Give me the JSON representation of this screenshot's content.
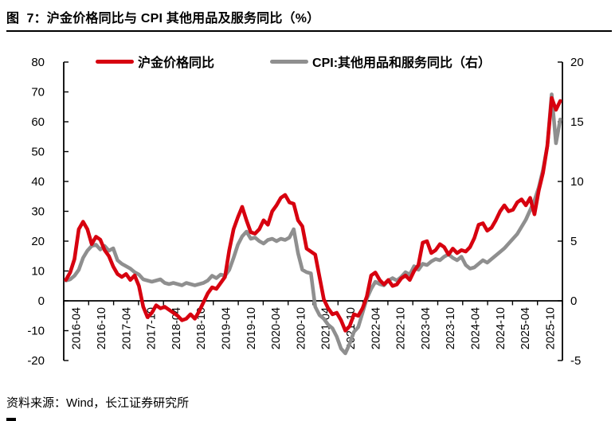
{
  "page": {
    "title": "图  7：沪金价格同比与 CPI 其他用品及服务同比（%）",
    "source": "资料来源：Wind，长江证券研究所"
  },
  "chart_data": {
    "type": "line",
    "title": "沪金价格同比与 CPI 其他用品及服务同比（%）",
    "legend_position": "top",
    "grid": false,
    "x": [
      "2016-04",
      "2016-05",
      "2016-06",
      "2016-07",
      "2016-08",
      "2016-09",
      "2016-10",
      "2016-11",
      "2016-12",
      "2017-01",
      "2017-02",
      "2017-03",
      "2017-04",
      "2017-05",
      "2017-06",
      "2017-07",
      "2017-08",
      "2017-09",
      "2017-10",
      "2017-11",
      "2017-12",
      "2018-01",
      "2018-02",
      "2018-03",
      "2018-04",
      "2018-05",
      "2018-06",
      "2018-07",
      "2018-08",
      "2018-09",
      "2018-10",
      "2018-11",
      "2018-12",
      "2019-01",
      "2019-02",
      "2019-03",
      "2019-04",
      "2019-05",
      "2019-06",
      "2019-07",
      "2019-08",
      "2019-09",
      "2019-10",
      "2019-11",
      "2019-12",
      "2020-01",
      "2020-02",
      "2020-03",
      "2020-04",
      "2020-05",
      "2020-06",
      "2020-07",
      "2020-08",
      "2020-09",
      "2020-10",
      "2020-11",
      "2020-12",
      "2021-01",
      "2021-02",
      "2021-03",
      "2021-04",
      "2021-05",
      "2021-06",
      "2021-07",
      "2021-08",
      "2021-09",
      "2021-10",
      "2021-11",
      "2021-12",
      "2022-01",
      "2022-02",
      "2022-03",
      "2022-04",
      "2022-05",
      "2022-06",
      "2022-07",
      "2022-08",
      "2022-09",
      "2022-10",
      "2022-11",
      "2022-12",
      "2023-01",
      "2023-02",
      "2023-03",
      "2023-04",
      "2023-05",
      "2023-06",
      "2023-07",
      "2023-08",
      "2023-09",
      "2023-10",
      "2023-11",
      "2023-12",
      "2024-01",
      "2024-02",
      "2024-03",
      "2024-04",
      "2024-05",
      "2024-06",
      "2024-07",
      "2024-08",
      "2024-09",
      "2024-10",
      "2024-11",
      "2024-12",
      "2025-01",
      "2025-02",
      "2025-03",
      "2025-04",
      "2025-05",
      "2025-06",
      "2025-07",
      "2025-08",
      "2025-09",
      "2025-10",
      "2025-11"
    ],
    "x_tick_labels": [
      "2016-04",
      "2016-10",
      "2017-04",
      "2017-10",
      "2018-04",
      "2018-10",
      "2019-04",
      "2019-10",
      "2020-04",
      "2020-10",
      "2021-04",
      "2021-10",
      "2022-04",
      "2022-10",
      "2023-04",
      "2023-10",
      "2024-04",
      "2024-10",
      "2025-04",
      "2025-10"
    ],
    "left_axis": {
      "min": -20,
      "max": 80,
      "ticks": [
        80,
        70,
        60,
        50,
        40,
        30,
        20,
        10,
        0,
        -10,
        -20
      ]
    },
    "right_axis": {
      "min": -5,
      "max": 20,
      "ticks": [
        20,
        15,
        10,
        5,
        0,
        -5
      ]
    },
    "series": [
      {
        "name": "沪金价格同比",
        "axis": "left",
        "color": "#d7000f",
        "values": [
          7,
          9.5,
          14,
          24,
          26.5,
          24,
          19,
          21.5,
          20.5,
          17,
          15,
          11.5,
          9,
          8,
          9,
          7,
          8.5,
          5,
          -2,
          -5.5,
          -4,
          -1.5,
          -2.5,
          -2,
          -3,
          -4,
          -5,
          -6.5,
          -6,
          -4.5,
          -6,
          -3.5,
          -0.5,
          2.5,
          4.5,
          4,
          6,
          8,
          17,
          24,
          28,
          31.5,
          27,
          23,
          22.5,
          24,
          27,
          25.5,
          30,
          32,
          34.5,
          35.5,
          33,
          32.5,
          27,
          25,
          17.5,
          16.5,
          15.5,
          8,
          0.5,
          -2.5,
          -4.5,
          -4,
          -6.5,
          -10,
          -8.5,
          -4.5,
          -5,
          -2.5,
          1.5,
          8.5,
          9.5,
          7,
          5.5,
          7,
          5,
          5.5,
          7.5,
          8.5,
          7,
          10,
          12,
          19.5,
          20,
          16,
          17,
          19,
          18,
          15.5,
          17.5,
          16,
          17,
          16.5,
          18,
          21,
          25.5,
          26,
          23.5,
          24.5,
          27,
          30,
          32,
          30,
          30.5,
          33,
          34,
          32,
          34.5,
          29,
          37,
          43,
          52,
          68,
          64,
          67
        ]
      },
      {
        "name": "CPI:其他用品和服务同比（右）",
        "axis": "right",
        "color": "#8f8f8f",
        "values": [
          1.7,
          1.8,
          2.1,
          2.6,
          3.6,
          4.2,
          4.6,
          4.7,
          4.3,
          4.6,
          4.2,
          4.4,
          3.4,
          3.1,
          2.9,
          2.7,
          2.4,
          2.2,
          1.8,
          1.7,
          1.6,
          1.7,
          1.8,
          1.5,
          1.4,
          1.5,
          1.4,
          1.3,
          1.5,
          1.4,
          1.3,
          1.4,
          1.5,
          1.7,
          2.1,
          1.9,
          2.2,
          2.1,
          2.6,
          3.6,
          4.7,
          5.4,
          5.8,
          5.2,
          5.3,
          5.0,
          4.8,
          5.1,
          5.2,
          5.0,
          5.2,
          5.1,
          5.3,
          6.0,
          4.0,
          2.6,
          2.4,
          2.3,
          -0.5,
          -1.2,
          -1.5,
          -2.0,
          -2.3,
          -3.0,
          -4.0,
          -4.4,
          -3.6,
          -2.6,
          -2.2,
          -1.0,
          0.2,
          1.0,
          1.6,
          1.4,
          1.3,
          1.7,
          1.9,
          1.7,
          2.0,
          2.4,
          2.2,
          2.9,
          2.6,
          3.1,
          3.0,
          3.3,
          3.5,
          3.4,
          3.7,
          3.9,
          3.6,
          3.4,
          3.7,
          3.0,
          2.7,
          2.8,
          3.1,
          3.4,
          3.2,
          3.5,
          3.8,
          4.1,
          4.4,
          4.8,
          5.2,
          5.6,
          6.2,
          6.8,
          7.6,
          8.4,
          9.5,
          11.0,
          13.0,
          17.3,
          13.2,
          15.2
        ]
      }
    ]
  }
}
